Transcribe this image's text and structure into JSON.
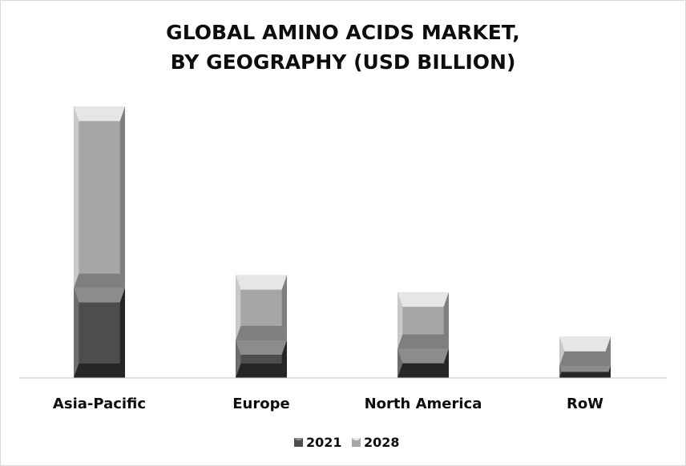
{
  "chart_data": {
    "type": "bar",
    "stacked": true,
    "title": "GLOBAL AMINO ACIDS MARKET,",
    "subtitle": "BY GEOGRAPHY (USD BILLION)",
    "categories": [
      "Asia-Pacific",
      "Europe",
      "North America",
      "RoW"
    ],
    "series": [
      {
        "name": "2021",
        "values": [
          10.5,
          4.4,
          3.4,
          1.4
        ],
        "color": "#4d4d4d"
      },
      {
        "name": "2028",
        "values": [
          21.2,
          7.6,
          6.6,
          3.4
        ],
        "color": "#a6a6a6"
      }
    ],
    "y_scale": "stacked, bottom segment 2021, top segment 2028",
    "xlabel": "",
    "ylabel": "",
    "ylim": [
      0,
      32
    ],
    "y_axis_visible": false,
    "grid": false,
    "legend": "bottom-center"
  }
}
